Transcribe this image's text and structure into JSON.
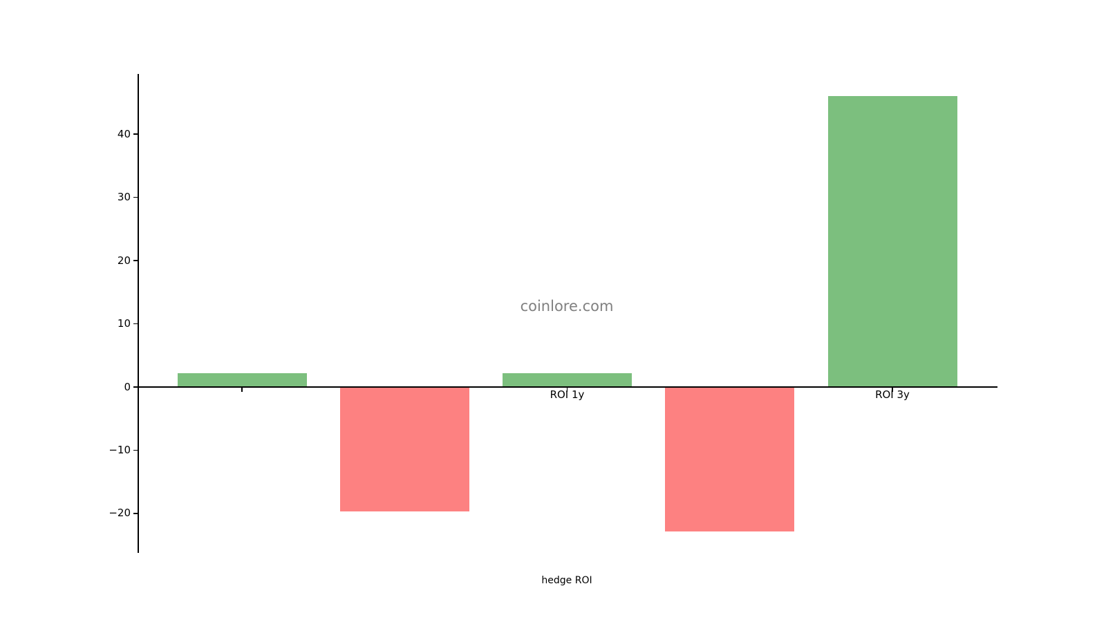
{
  "chart_data": {
    "type": "bar",
    "title": "",
    "xlabel": "hedge ROI",
    "ylabel": "",
    "watermark": "coinlore.com",
    "categories": [
      "",
      "",
      "ROI 1y",
      "",
      "ROI 3y"
    ],
    "values": [
      2.2,
      -19.7,
      2.2,
      -22.9,
      46
    ],
    "bar_colors": [
      "#7cbf7e",
      "#fd8181",
      "#7cbf7e",
      "#fd8181",
      "#7cbf7e"
    ],
    "positive_color": "#7cbf7e",
    "negative_color": "#fd8181",
    "y_ticks": [
      40,
      30,
      20,
      10,
      0,
      -10,
      -20
    ],
    "ylim": [
      -26.3,
      49.5
    ],
    "x_ticks_at_category_indices": [
      0,
      2,
      4
    ],
    "grid": false,
    "legend_position": "none",
    "axis_color": "#000000",
    "watermark_color": "#808080"
  }
}
